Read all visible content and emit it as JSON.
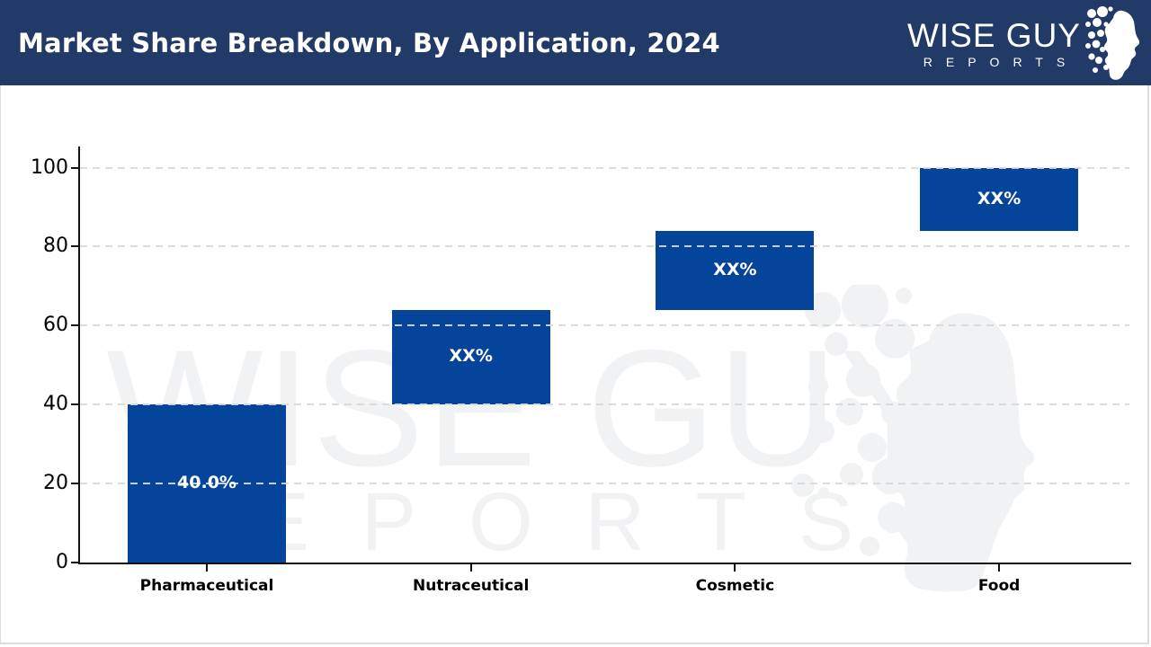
{
  "header": {
    "title": "Market Share Breakdown, By Application, 2024"
  },
  "logo": {
    "line1": "WISE GUY",
    "line2": "REPORTS"
  },
  "watermark": {
    "line1": "WISE GUY",
    "line2": "REPORTS"
  },
  "colors": {
    "header_bg": "#213A67",
    "bar": "#05449B",
    "grid": "#D9D9D9",
    "watermark": "#F1F2F4",
    "axis": "#111111",
    "bar_label_text": "#FFFFFF"
  },
  "chart_data": {
    "type": "bar",
    "subtype": "waterfall",
    "title": "Market Share Breakdown, By Application, 2024",
    "categories": [
      "Pharmaceutical",
      "Nutraceutical",
      "Cosmetic",
      "Food"
    ],
    "segments": [
      {
        "category": "Pharmaceutical",
        "start": 0,
        "end": 40,
        "label": "40.0%"
      },
      {
        "category": "Nutraceutical",
        "start": 40,
        "end": 64,
        "label": "XX%"
      },
      {
        "category": "Cosmetic",
        "start": 64,
        "end": 84,
        "label": "XX%"
      },
      {
        "category": "Food",
        "start": 84,
        "end": 100,
        "label": "XX%"
      }
    ],
    "y_ticks": [
      0,
      20,
      40,
      60,
      80,
      100
    ],
    "ylim": [
      0,
      105
    ],
    "xlabel": "",
    "ylabel": "",
    "grid": "horizontal-dashed",
    "legend": "none"
  }
}
